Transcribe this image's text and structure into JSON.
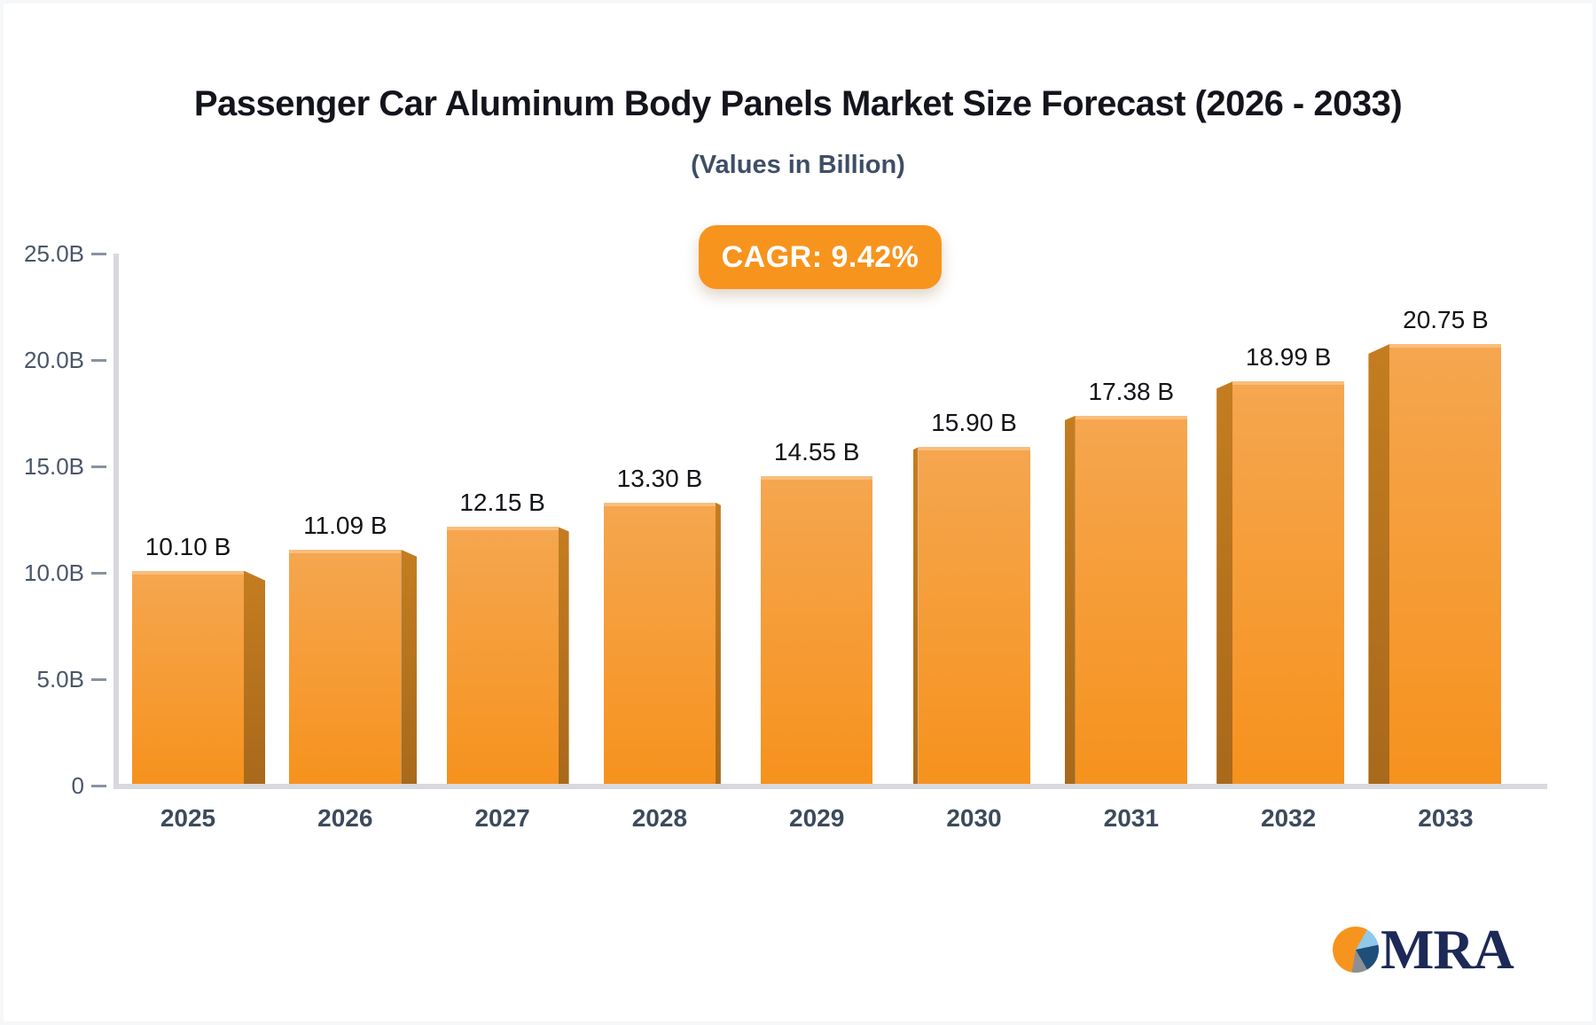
{
  "title": "Passenger Car Aluminum Body Panels Market Size Forecast (2026 - 2033)",
  "subtitle": "(Values in Billion)",
  "cagr_badge": "CAGR: 9.42%",
  "logo": {
    "text": "MRA",
    "pie_icon": "pie-chart-icon"
  },
  "colors": {
    "badge_bg": "#F7941E",
    "bar_face_top": "#F5A64F",
    "bar_face_bottom": "#F6921D",
    "bar_side": "#B5701C",
    "axis_line": "#D8D9DD",
    "tick_label": "#4A5568",
    "year_label": "#3D4A5C",
    "value_label": "#121417",
    "logo_navy": "#1D2956",
    "logo_blue": "#8FC8E8",
    "logo_gray": "#8E8E93",
    "logo_orange": "#F7941E"
  },
  "chart_data": {
    "type": "bar",
    "title": "Passenger Car Aluminum Body Panels Market Size Forecast (2026 - 2033)",
    "subtitle": "(Values in Billion)",
    "cagr_percent": 9.42,
    "categories": [
      "2025",
      "2026",
      "2027",
      "2028",
      "2029",
      "2030",
      "2031",
      "2032",
      "2033"
    ],
    "values": [
      10.1,
      11.09,
      12.15,
      13.3,
      14.55,
      15.9,
      17.38,
      18.99,
      20.75
    ],
    "value_labels": [
      "10.10 B",
      "11.09 B",
      "12.15 B",
      "13.30 B",
      "14.55 B",
      "15.90 B",
      "17.38 B",
      "18.99 B",
      "20.75 B"
    ],
    "xlabel": "",
    "ylabel": "",
    "ylim": [
      0,
      25
    ],
    "y_tick_values": [
      25,
      20,
      15,
      10,
      5,
      0
    ],
    "y_tick_labels": [
      "25.0B",
      "20.0B",
      "15.0B",
      "10.0B",
      "5.0B",
      "0"
    ],
    "grid": false,
    "legend": false,
    "style": "3d-extruded-bars, center perspective"
  }
}
